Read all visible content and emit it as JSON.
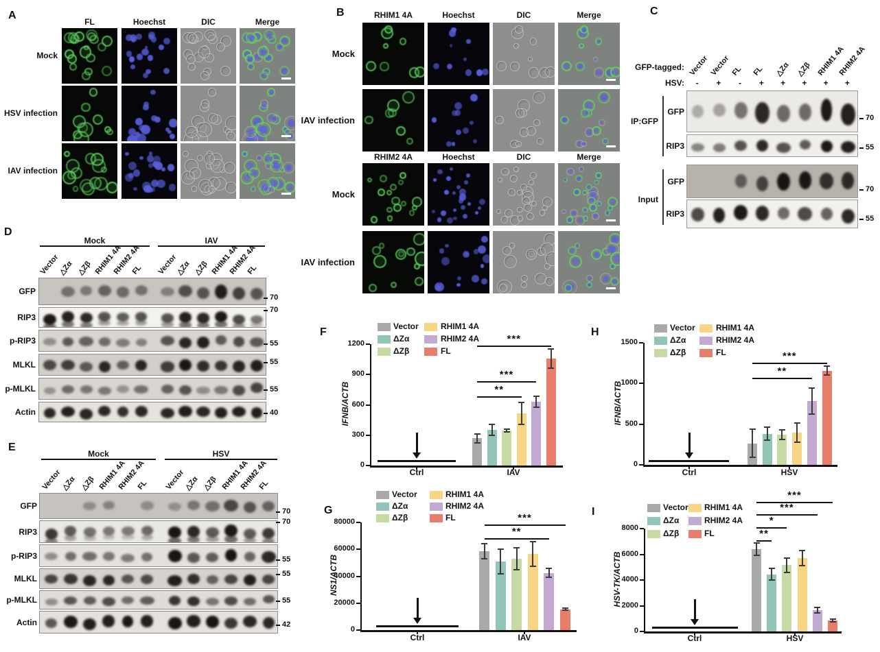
{
  "figure": {
    "panels": {
      "A": {
        "label": "A",
        "columns": [
          "FL",
          "Hoechst",
          "DIC",
          "Merge"
        ],
        "rows": [
          "Mock",
          "HSV infection",
          "IAV infection"
        ]
      },
      "B": {
        "label": "B",
        "sets": [
          {
            "columns": [
              "RHIM1 4A",
              "Hoechst",
              "DIC",
              "Merge"
            ],
            "rows": [
              "Mock",
              "IAV infection"
            ]
          },
          {
            "columns": [
              "RHIM2 4A",
              "Hoechst",
              "DIC",
              "Merge"
            ],
            "rows": [
              "Mock",
              "IAV infection"
            ]
          }
        ]
      },
      "C": {
        "label": "C",
        "row1_label": "GFP-tagged:",
        "row2_label": "HSV:",
        "lanes": [
          "Vector",
          "Vector",
          "FL",
          "FL",
          "△Zα",
          "△Zβ",
          "RHIM1 4A",
          "RHIM2 4A"
        ],
        "hsv": [
          "-",
          "+",
          "-",
          "+",
          "+",
          "+",
          "+",
          "+"
        ],
        "groups": [
          {
            "name": "IP:GFP",
            "blots": [
              {
                "label": "GFP",
                "marker": "70"
              },
              {
                "label": "RIP3",
                "marker": "55"
              }
            ]
          },
          {
            "name": "Input",
            "blots": [
              {
                "label": "GFP",
                "marker": "70"
              },
              {
                "label": "RIP3",
                "marker": "55"
              }
            ]
          }
        ]
      },
      "D": {
        "label": "D",
        "conditions": [
          "Mock",
          "IAV"
        ],
        "lanes": [
          "Vector",
          "△Zα",
          "△Zβ",
          "RHIM1 4A",
          "RHIM2 4A",
          "FL"
        ],
        "blots": [
          {
            "label": "GFP",
            "marker": "70"
          },
          {
            "label": "RIP3",
            "marker": "70"
          },
          {
            "label": "p-RIP3",
            "marker": "55"
          },
          {
            "label": "MLKL",
            "marker": "55"
          },
          {
            "label": "p-MLKL",
            "marker": "55"
          },
          {
            "label": "Actin",
            "marker": "40"
          }
        ]
      },
      "E": {
        "label": "E",
        "conditions": [
          "Mock",
          "HSV"
        ],
        "lanes": [
          "Vector",
          "△Zα",
          "△Zβ",
          "RHIM1 4A",
          "RHIM2 4A",
          "FL"
        ],
        "blots": [
          {
            "label": "GFP",
            "marker": "70"
          },
          {
            "label": "RIP3",
            "marker": "70"
          },
          {
            "label": "p-RIP3",
            "marker": "55"
          },
          {
            "label": "MLKL",
            "marker": "55"
          },
          {
            "label": "p-MLKL",
            "marker": "55"
          },
          {
            "label": "Actin",
            "marker": "42"
          }
        ]
      },
      "F": {
        "label": "F"
      },
      "G": {
        "label": "G"
      },
      "H": {
        "label": "H"
      },
      "I": {
        "label": "I"
      }
    }
  },
  "chart_data": [
    {
      "panel": "F",
      "type": "bar",
      "ylabel": "IFNB/ACTB",
      "categories": [
        "Ctrl",
        "IAV"
      ],
      "ylim": [
        0,
        1200
      ],
      "yticks": [
        0,
        300,
        600,
        900,
        1200
      ],
      "legend_position": "top",
      "grid": false,
      "ctrl_arrow": true,
      "series": [
        {
          "name": "Vector",
          "color": "#a9a9ab",
          "values": [
            0,
            270
          ],
          "errors": [
            0,
            45
          ]
        },
        {
          "name": "ΔZα",
          "color": "#92c5b7",
          "values": [
            0,
            350
          ],
          "errors": [
            0,
            55
          ]
        },
        {
          "name": "ΔZβ",
          "color": "#c8daa4",
          "values": [
            0,
            345
          ],
          "errors": [
            0,
            12
          ]
        },
        {
          "name": "RHIM1 4A",
          "color": "#f8d584",
          "values": [
            0,
            515
          ],
          "errors": [
            0,
            110
          ]
        },
        {
          "name": "RHIM2 4A",
          "color": "#c2aad3",
          "values": [
            0,
            630
          ],
          "errors": [
            0,
            55
          ]
        },
        {
          "name": "FL",
          "color": "#e97d6c",
          "values": [
            0,
            1060
          ],
          "errors": [
            0,
            95
          ]
        }
      ],
      "significance": [
        {
          "from": "Vector",
          "to": "RHIM1 4A",
          "label": "**"
        },
        {
          "from": "Vector",
          "to": "RHIM2 4A",
          "label": "***"
        },
        {
          "from": "Vector",
          "to": "FL",
          "label": "***"
        }
      ]
    },
    {
      "panel": "G",
      "type": "bar",
      "ylabel": "NS1/ACTB",
      "categories": [
        "Ctrl",
        "IAV"
      ],
      "ylim": [
        0,
        80000
      ],
      "yticks": [
        0,
        20000,
        40000,
        60000,
        80000
      ],
      "legend_position": "top",
      "grid": false,
      "ctrl_arrow": true,
      "series": [
        {
          "name": "Vector",
          "color": "#a9a9ab",
          "values": [
            0,
            58500
          ],
          "errors": [
            0,
            5500
          ]
        },
        {
          "name": "ΔZα",
          "color": "#92c5b7",
          "values": [
            0,
            51000
          ],
          "errors": [
            0,
            9000
          ]
        },
        {
          "name": "ΔZβ",
          "color": "#c8daa4",
          "values": [
            0,
            53000
          ],
          "errors": [
            0,
            8000
          ]
        },
        {
          "name": "RHIM1 4A",
          "color": "#f8d584",
          "values": [
            0,
            56500
          ],
          "errors": [
            0,
            9000
          ]
        },
        {
          "name": "RHIM2 4A",
          "color": "#c2aad3",
          "values": [
            0,
            42500
          ],
          "errors": [
            0,
            3500
          ]
        },
        {
          "name": "FL",
          "color": "#e97d6c",
          "values": [
            0,
            15500
          ],
          "errors": [
            0,
            700
          ]
        }
      ],
      "significance": [
        {
          "from": "Vector",
          "to": "RHIM2 4A",
          "label": "**"
        },
        {
          "from": "Vector",
          "to": "FL",
          "label": "***"
        }
      ]
    },
    {
      "panel": "H",
      "type": "bar",
      "ylabel": "IFNB/ACTB",
      "categories": [
        "Ctrl",
        "HSV"
      ],
      "ylim": [
        0,
        1500
      ],
      "yticks": [
        0,
        500,
        1000,
        1500
      ],
      "legend_position": "top",
      "grid": false,
      "ctrl_arrow": true,
      "series": [
        {
          "name": "Vector",
          "color": "#a9a9ab",
          "values": [
            0,
            265
          ],
          "errors": [
            0,
            175
          ]
        },
        {
          "name": "ΔZα",
          "color": "#92c5b7",
          "values": [
            0,
            380
          ],
          "errors": [
            0,
            80
          ]
        },
        {
          "name": "ΔZβ",
          "color": "#c8daa4",
          "values": [
            0,
            370
          ],
          "errors": [
            0,
            60
          ]
        },
        {
          "name": "RHIM1 4A",
          "color": "#f8d584",
          "values": [
            0,
            395
          ],
          "errors": [
            0,
            115
          ]
        },
        {
          "name": "RHIM2 4A",
          "color": "#c2aad3",
          "values": [
            0,
            780
          ],
          "errors": [
            0,
            160
          ]
        },
        {
          "name": "FL",
          "color": "#e97d6c",
          "values": [
            0,
            1155
          ],
          "errors": [
            0,
            55
          ]
        }
      ],
      "significance": [
        {
          "from": "Vector",
          "to": "RHIM2 4A",
          "label": "**"
        },
        {
          "from": "Vector",
          "to": "FL",
          "label": "***"
        }
      ]
    },
    {
      "panel": "I",
      "type": "bar",
      "ylabel": "HSV-TK/ACTB",
      "categories": [
        "Ctrl",
        "HSV"
      ],
      "ylim": [
        0,
        8000
      ],
      "yticks": [
        0,
        2000,
        4000,
        6000,
        8000
      ],
      "legend_position": "top",
      "grid": false,
      "ctrl_arrow": true,
      "series": [
        {
          "name": "Vector",
          "color": "#a9a9ab",
          "values": [
            0,
            6400
          ],
          "errors": [
            0,
            500
          ]
        },
        {
          "name": "ΔZα",
          "color": "#92c5b7",
          "values": [
            0,
            4450
          ],
          "errors": [
            0,
            450
          ]
        },
        {
          "name": "ΔZβ",
          "color": "#c8daa4",
          "values": [
            0,
            5150
          ],
          "errors": [
            0,
            550
          ]
        },
        {
          "name": "RHIM1 4A",
          "color": "#f8d584",
          "values": [
            0,
            5700
          ],
          "errors": [
            0,
            600
          ]
        },
        {
          "name": "RHIM2 4A",
          "color": "#c2aad3",
          "values": [
            0,
            1650
          ],
          "errors": [
            0,
            200
          ]
        },
        {
          "name": "FL",
          "color": "#e97d6c",
          "values": [
            0,
            850
          ],
          "errors": [
            0,
            100
          ]
        }
      ],
      "significance": [
        {
          "from": "Vector",
          "to": "ΔZα",
          "label": "**"
        },
        {
          "from": "Vector",
          "to": "ΔZβ",
          "label": "*"
        },
        {
          "from": "Vector",
          "to": "RHIM2 4A",
          "label": "***"
        },
        {
          "from": "Vector",
          "to": "FL",
          "label": "***"
        }
      ]
    }
  ]
}
